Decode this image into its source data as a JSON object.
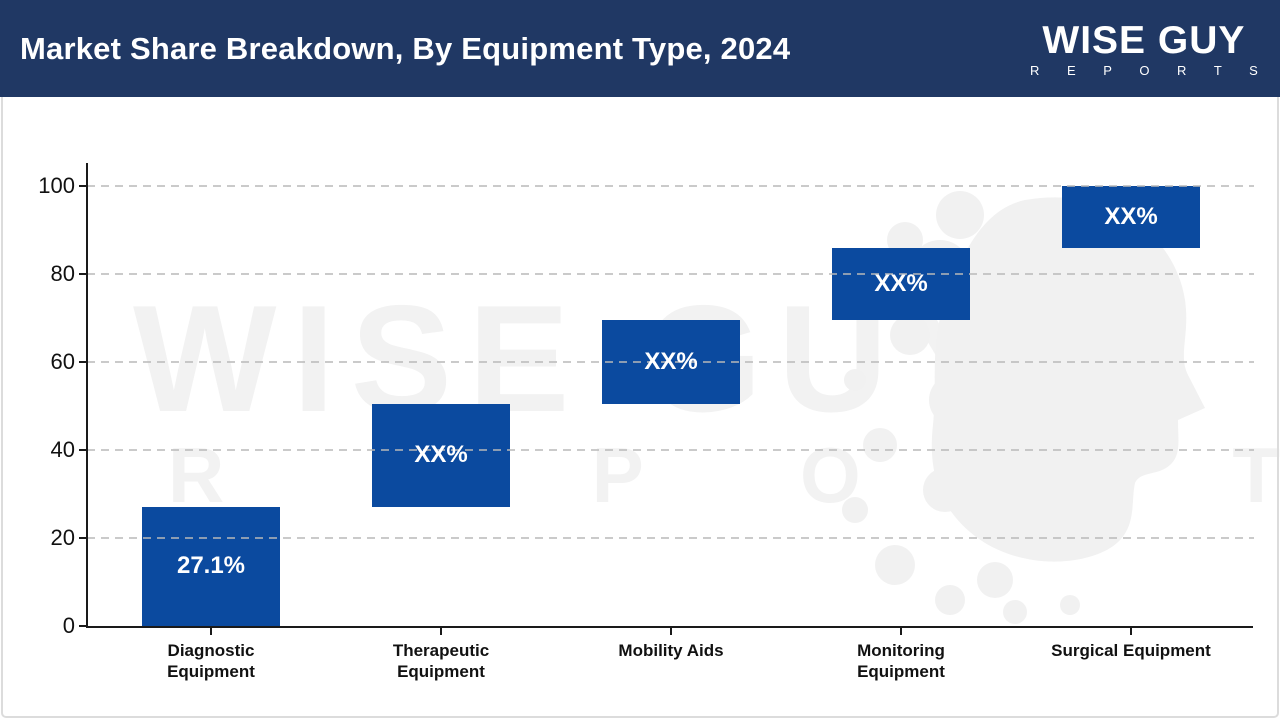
{
  "header": {
    "title": "Market Share Breakdown, By Equipment Type, 2024",
    "bg_color": "#203864",
    "text_color": "#ffffff"
  },
  "logo": {
    "wordmark": "WISE GUY",
    "subtext": "R E P O R T S"
  },
  "watermark": {
    "line1": "WISE GUY",
    "line2": "R E P O R T S",
    "color": "#f2f2f2"
  },
  "chart_data": {
    "type": "bar",
    "subtype": "floating-waterfall",
    "title": "Market Share Breakdown, By Equipment Type, 2024",
    "categories": [
      "Diagnostic Equipment",
      "Therapeutic Equipment",
      "Mobility Aids",
      "Monitoring Equipment",
      "Surgical Equipment"
    ],
    "category_lines": [
      [
        "Diagnostic",
        "Equipment"
      ],
      [
        "Therapeutic",
        "Equipment"
      ],
      [
        "Mobility Aids"
      ],
      [
        "Monitoring",
        "Equipment"
      ],
      [
        "Surgical Equipment"
      ]
    ],
    "segments": [
      {
        "category": "Diagnostic Equipment",
        "start": 0,
        "end": 27.1,
        "label": "27.1%"
      },
      {
        "category": "Therapeutic Equipment",
        "start": 27.1,
        "end": 50.5,
        "label": "XX%"
      },
      {
        "category": "Mobility Aids",
        "start": 50.5,
        "end": 69.5,
        "label": "XX%"
      },
      {
        "category": "Monitoring Equipment",
        "start": 69.5,
        "end": 85.9,
        "label": "XX%"
      },
      {
        "category": "Surgical Equipment",
        "start": 85.9,
        "end": 100,
        "label": "XX%"
      }
    ],
    "ylim": [
      0,
      100
    ],
    "yticks": [
      0,
      20,
      40,
      60,
      80,
      100
    ],
    "xlabel": "",
    "ylabel": "",
    "grid": "horizontal dashed, drawn over bars",
    "legend": "none",
    "bar_color": "#0b4a9f",
    "bar_label_color": "#ffffff"
  }
}
